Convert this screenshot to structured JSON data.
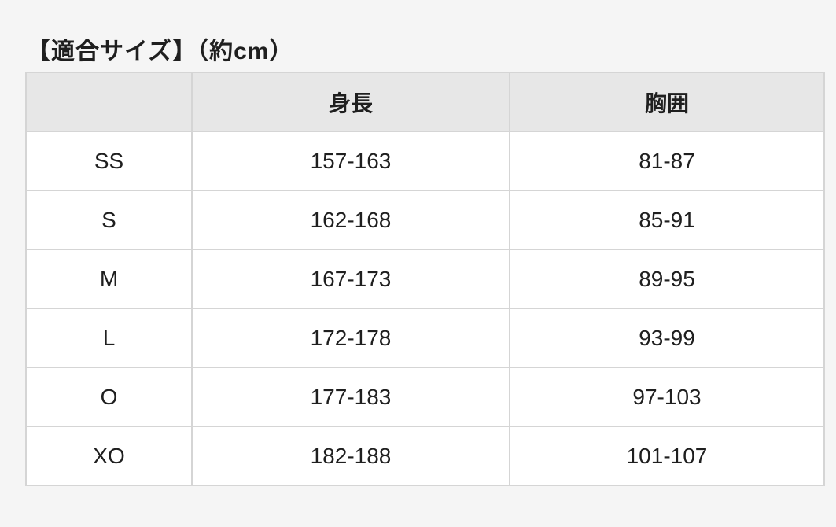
{
  "section": {
    "title": "【適合サイズ】（約cm）"
  },
  "table": {
    "columns": [
      "",
      "身長",
      "胸囲"
    ],
    "rows": [
      {
        "cells": [
          "SS",
          "157-163",
          "81-87"
        ]
      },
      {
        "cells": [
          "S",
          "162-168",
          "85-91"
        ]
      },
      {
        "cells": [
          "M",
          "167-173",
          "89-95"
        ]
      },
      {
        "cells": [
          "L",
          "172-178",
          "93-99"
        ]
      },
      {
        "cells": [
          "O",
          "177-183",
          "97-103"
        ]
      },
      {
        "cells": [
          "XO",
          "182-188",
          "101-107"
        ]
      }
    ]
  },
  "colors": {
    "page_bg": "#f5f5f5",
    "header_bg": "#e7e7e7",
    "cell_bg": "#ffffff",
    "border": "#d5d5d5",
    "text": "#1f1f1f"
  }
}
